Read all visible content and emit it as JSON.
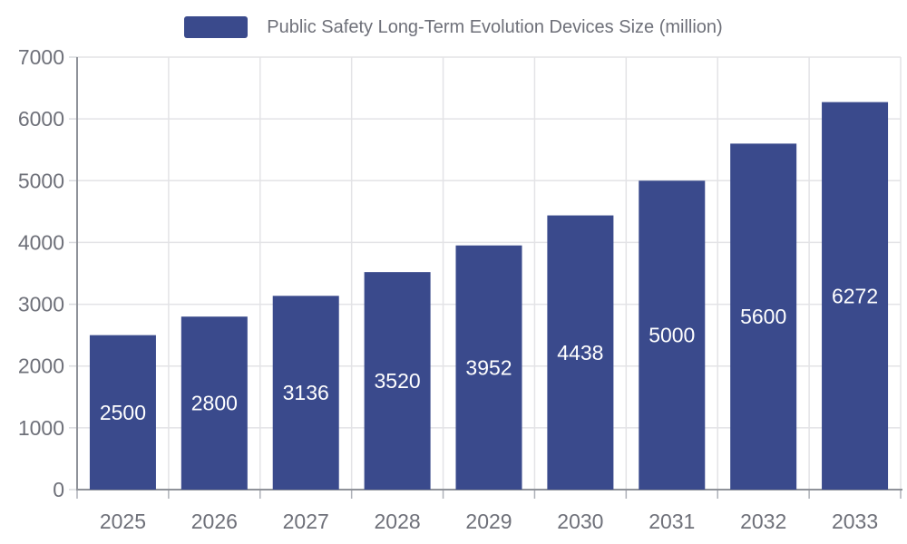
{
  "legend": {
    "label": "Public Safety Long-Term Evolution Devices Size (million)"
  },
  "chart_data": {
    "type": "bar",
    "title": "Public Safety Long-Term Evolution Devices Size (million)",
    "categories": [
      "2025",
      "2026",
      "2027",
      "2028",
      "2029",
      "2030",
      "2031",
      "2032",
      "2033"
    ],
    "values": [
      2500,
      2800,
      3136,
      3520,
      3952,
      4438,
      5000,
      5600,
      6272
    ],
    "xlabel": "",
    "ylabel": "",
    "ylim": [
      0,
      7000
    ],
    "y_ticks": [
      0,
      1000,
      2000,
      3000,
      4000,
      5000,
      6000,
      7000
    ],
    "grid": true,
    "legend_position": "top",
    "bar_label_position": "inside-middle"
  },
  "colors": {
    "bar": "#3A4A8C",
    "bar_label": "#FFFFFF",
    "axis_text": "#6E7079",
    "title_text": "#6E7079",
    "grid_line": "#E3E3E6",
    "axis_line": "#8F9299",
    "y_tick_mark": "#D9DADE",
    "x_tick_mark": "#AEB1B8",
    "background": "#FFFFFF"
  }
}
